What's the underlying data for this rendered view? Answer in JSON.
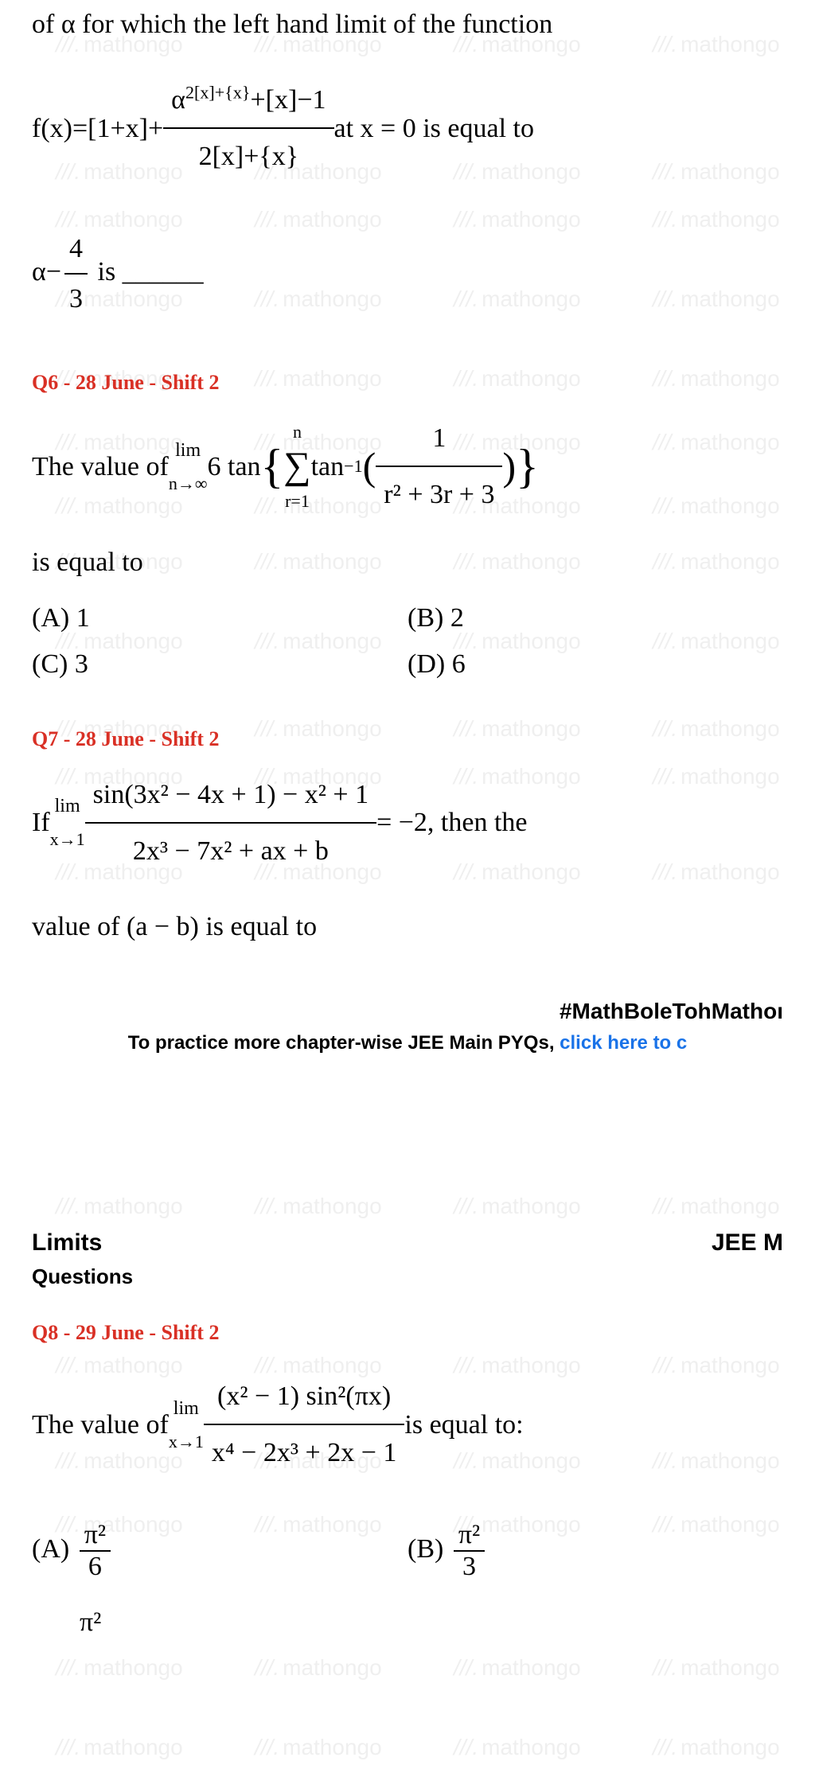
{
  "watermark": {
    "text": "mathongo",
    "color": "rgba(150,150,150,0.15)",
    "fontsize": 28,
    "rows": [
      40,
      200,
      260,
      360,
      460,
      540,
      620,
      690,
      790,
      900,
      960,
      1080,
      1500,
      1700,
      1820,
      1900,
      2080,
      2180
    ],
    "cols": [
      70,
      320,
      570,
      820
    ]
  },
  "q5": {
    "intro": "of α for which the left hand limit of the function",
    "fx_lhs": "f(x)=[1+x]+",
    "frac_num": "α",
    "frac_num_exp": "2[x]+{x}",
    "frac_num_rest": "+[x]−1",
    "frac_den": "2[x]+{x}",
    "at_text": " at x = 0 is equal to",
    "alpha_minus": "α−",
    "four": "4",
    "three": "3",
    "is_blank": " is ______"
  },
  "q6": {
    "label": "Q6 - 28 June - Shift 2",
    "lead": "The value of ",
    "lim": "lim",
    "limsub": "n→∞",
    "sixtan": " 6 tan",
    "sum_n": "n",
    "sum_r1": "r=1",
    "taninv": "tan",
    "taninv_sup": "−1",
    "inner_num": "1",
    "inner_den": "r² + 3r + 3",
    "equalto": "is equal to",
    "optA": "(A) 1",
    "optB": "(B) 2",
    "optC": "(C) 3",
    "optD": "(D) 6"
  },
  "q7": {
    "label": "Q7 - 28 June - Shift 2",
    "if": "If ",
    "lim": "lim",
    "limsub": "x→1",
    "num": "sin(3x² − 4x + 1) − x² + 1",
    "den": "2x³ − 7x² + ax + b",
    "rhs": "= −2, then the",
    "line2": "value of (a − b) is equal to"
  },
  "hashtag": "#MathBoleTohMathoı",
  "practice": {
    "pre": "To practice more chapter-wise JEE Main PYQs, ",
    "link": "click here to c"
  },
  "section": {
    "left": "Limits",
    "right": "JEE M",
    "sub": "Questions"
  },
  "q8": {
    "label": "Q8 - 29 June - Shift 2",
    "lead": "The value of ",
    "lim": "lim",
    "limsub": "x→1",
    "num": "(x² − 1) sin²(πx)",
    "den": "x⁴ − 2x³ + 2x − 1",
    "tail": " is equal to:",
    "optA_pre": "(A) ",
    "optA_num": "π²",
    "optA_den": "6",
    "optB_pre": "(B) ",
    "optB_num": "π²",
    "optB_den": "3",
    "bottom_frag": "π²"
  }
}
